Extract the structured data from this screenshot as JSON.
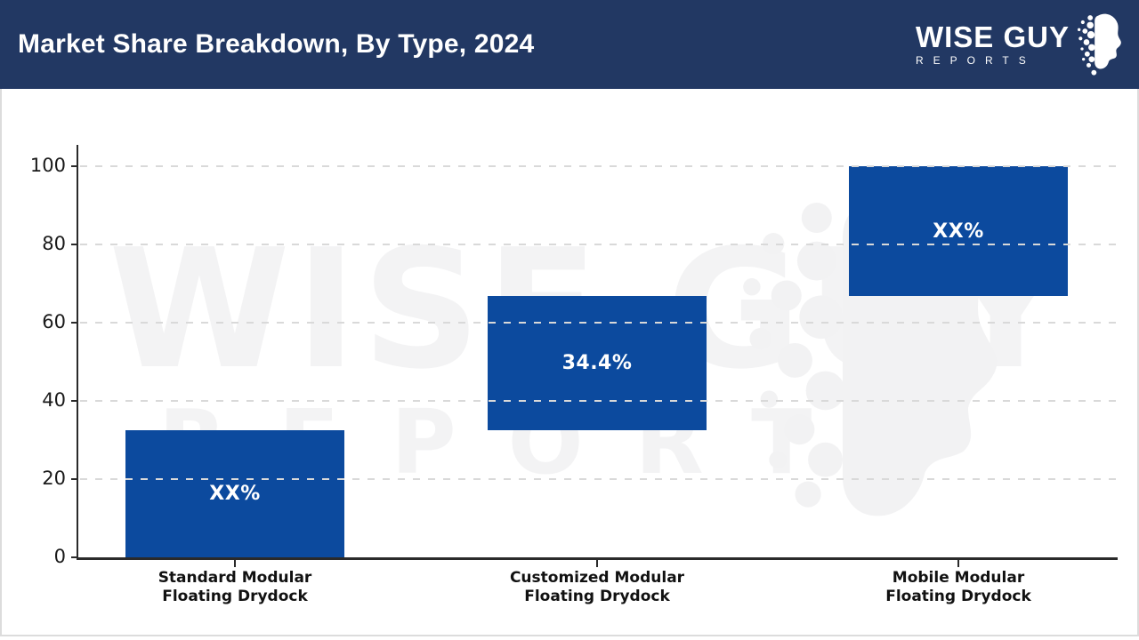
{
  "header": {
    "title": "Market Share Breakdown, By Type, 2024",
    "logo": {
      "name": "WISE GUY",
      "tagline": "REPORTS"
    }
  },
  "watermark": {
    "name": "WISE GUY",
    "tagline": "REPORTS"
  },
  "colors": {
    "header_bg": "#223863",
    "bar_fill": "#0c4a9e",
    "bar_label": "#ffffff",
    "gridline": "#d9d9d9",
    "axis": "#2a2a2a",
    "tick_label": "#1a1a1a",
    "category_label": "#111111",
    "watermark": "#f3f3f4",
    "background": "#ffffff"
  },
  "chart_data": {
    "type": "bar",
    "variant": "floating-segment-waterfall",
    "title": "Market Share Breakdown, By Type, 2024",
    "xlabel": "",
    "ylabel": "",
    "ylim": [
      0,
      105
    ],
    "yticks": [
      0,
      20,
      40,
      60,
      80,
      100
    ],
    "grid": "horizontal-dashed",
    "legend_position": "none",
    "categories": [
      "Standard Modular Floating Drydock",
      "Customized Modular Floating Drydock",
      "Mobile Modular Floating Drydock"
    ],
    "category_label_lines": [
      [
        "Standard Modular",
        "Floating Drydock"
      ],
      [
        "Customized Modular",
        "Floating Drydock"
      ],
      [
        "Mobile Modular",
        "Floating Drydock"
      ]
    ],
    "bars": [
      {
        "category": "Standard Modular Floating Drydock",
        "label": "XX%",
        "segment_start": 0,
        "segment_end": 32.4
      },
      {
        "category": "Customized Modular Floating Drydock",
        "label": "34.4%",
        "segment_start": 32.4,
        "segment_end": 66.8
      },
      {
        "category": "Mobile Modular Floating Drydock",
        "label": "XX%",
        "segment_start": 66.8,
        "segment_end": 100
      }
    ]
  }
}
